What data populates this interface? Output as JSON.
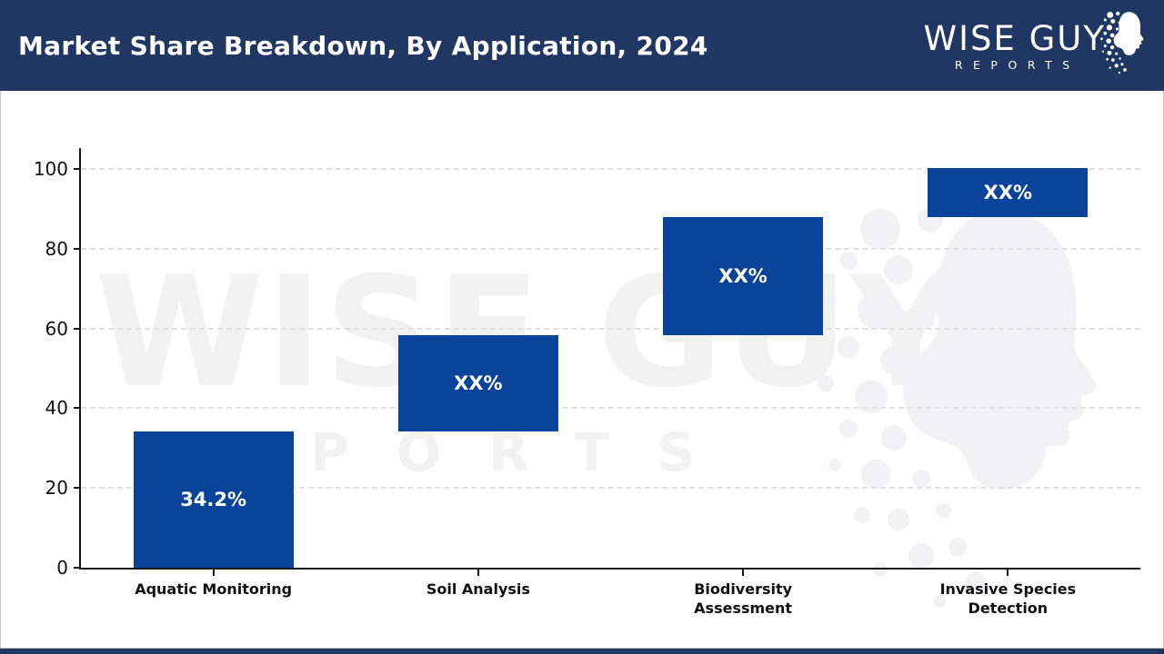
{
  "header": {
    "title": "Market Share Breakdown, By Application, 2024",
    "logo": {
      "name": "WISE GUY",
      "subtitle": "REPORTS"
    }
  },
  "watermark": {
    "name": "WISE GUY",
    "subtitle": "REPORTS"
  },
  "chart_data": {
    "type": "bar",
    "subtype": "waterfall",
    "title": "Market Share Breakdown, By Application, 2024",
    "categories": [
      "Aquatic Monitoring",
      "Soil Analysis",
      "Biodiversity\nAssessment",
      "Invasive Species\nDetection"
    ],
    "segments": [
      {
        "category": "Aquatic Monitoring",
        "start": 0,
        "end": 34.2,
        "label": "34.2%"
      },
      {
        "category": "Soil Analysis",
        "start": 34.2,
        "end": 58.3,
        "label": "XX%"
      },
      {
        "category": "Biodiversity Assessment",
        "start": 58.3,
        "end": 88.0,
        "label": "XX%"
      },
      {
        "category": "Invasive Species Detection",
        "start": 88.0,
        "end": 100.2,
        "label": "XX%"
      }
    ],
    "xlabel": "",
    "ylabel": "",
    "ylim": [
      0,
      100
    ],
    "yticks": [
      0,
      20,
      40,
      60,
      80,
      100
    ],
    "grid": "horizontal-dashed",
    "legend": "none",
    "colors": {
      "bar": "#0a449a",
      "bar_label": "#ffffff",
      "axis": "#1a1a1a",
      "gridline": "#e0e0e0",
      "header_bg": "#203764",
      "watermark": "#f2f2f4"
    }
  }
}
